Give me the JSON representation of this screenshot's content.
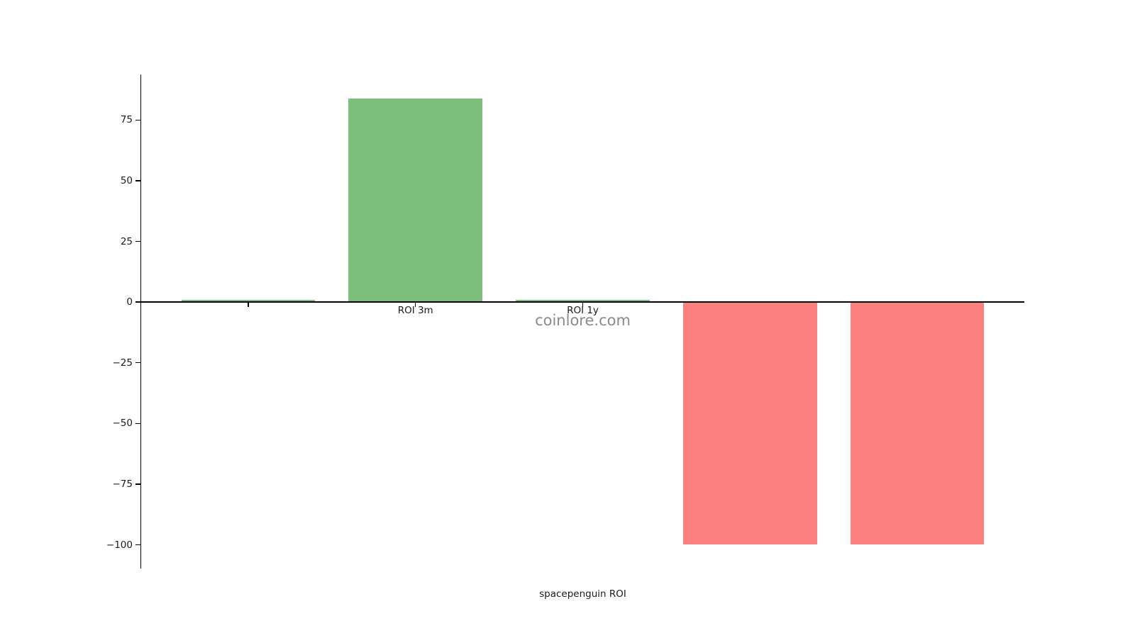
{
  "page": {
    "background_color": "#ffffff"
  },
  "watermark": {
    "text": "coinlore.com",
    "color": "#8a8a8a"
  },
  "chart_data": {
    "type": "bar",
    "title": "",
    "xlabel": "spacepenguin ROI",
    "ylabel": "",
    "categories": [
      "",
      "ROI 3m",
      "ROI 1y",
      "",
      ""
    ],
    "values": [
      1,
      84,
      1,
      -100,
      -100
    ],
    "bar_colors": [
      "#7cbe7c",
      "#7cbe7c",
      "#7cbe7c",
      "#fc8080",
      "#fc8080"
    ],
    "positive_color": "#7cbe7c",
    "negative_color": "#fc8080",
    "bar_width_fraction": 0.8,
    "xlim": [
      -0.64,
      4.64
    ],
    "ylim": [
      -109.2,
      93.2
    ],
    "yticks": [
      75,
      50,
      25,
      0,
      -25,
      -50,
      -75,
      -100
    ],
    "ytick_labels": [
      "75",
      "50",
      "25",
      "0",
      "−25",
      "−50",
      "−75",
      "−100"
    ],
    "x_tick_marks_visible": [
      true,
      true,
      true,
      false,
      false
    ],
    "grid": false,
    "legend_position": "none",
    "axis_color": "#000000",
    "tick_label_color": "#1a1a1a"
  }
}
